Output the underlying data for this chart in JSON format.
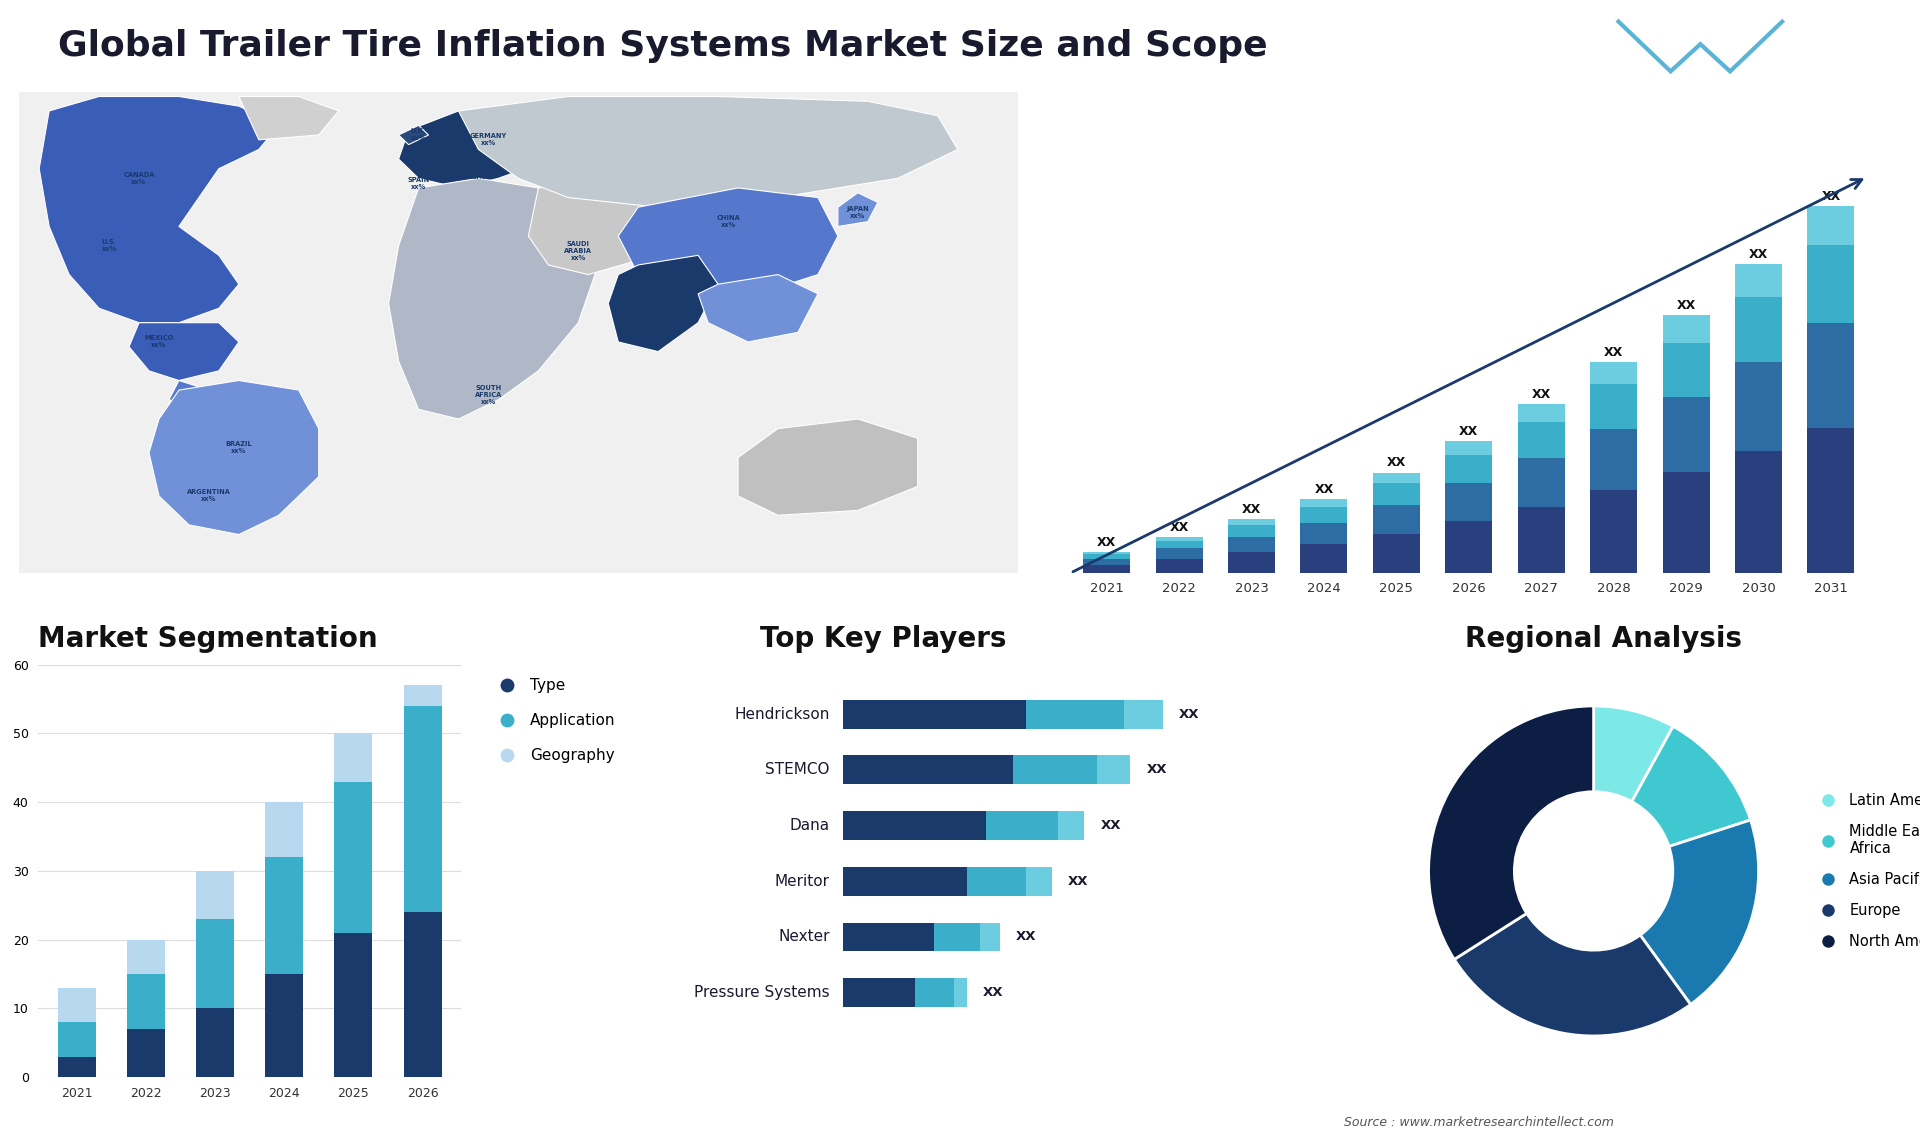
{
  "title": "Global Trailer Tire Inflation Systems Market Size and Scope",
  "title_fontsize": 26,
  "background_color": "#ffffff",
  "bar_chart_years": [
    2021,
    2022,
    2023,
    2024,
    2025,
    2026,
    2027,
    2028,
    2029,
    2030,
    2031
  ],
  "bar_seg1_color": "#2a3f7e",
  "bar_seg2_color": "#2e6da4",
  "bar_seg3_color": "#3baeca",
  "bar_seg4_color": "#6dcde0",
  "bar_heights_seg1": [
    2.0,
    3.5,
    5.0,
    7.0,
    9.5,
    12.5,
    16.0,
    20.0,
    24.5,
    29.5,
    35.0
  ],
  "bar_heights_seg2": [
    1.5,
    2.5,
    3.8,
    5.2,
    7.0,
    9.2,
    11.8,
    14.8,
    18.0,
    21.5,
    25.5
  ],
  "bar_heights_seg3": [
    1.0,
    1.8,
    2.8,
    3.8,
    5.2,
    6.8,
    8.7,
    10.8,
    13.2,
    15.8,
    18.8
  ],
  "bar_heights_seg4": [
    0.5,
    0.9,
    1.4,
    1.9,
    2.6,
    3.4,
    4.3,
    5.4,
    6.6,
    7.9,
    9.4
  ],
  "seg_chart_years": [
    2021,
    2022,
    2023,
    2024,
    2025,
    2026
  ],
  "seg_type_vals": [
    3,
    7,
    10,
    15,
    21,
    24
  ],
  "seg_app_vals": [
    5,
    8,
    13,
    17,
    22,
    30
  ],
  "seg_geo_vals": [
    5,
    5,
    7,
    8,
    7,
    3
  ],
  "seg_type_color": "#1a3a6b",
  "seg_app_color": "#3baeca",
  "seg_geo_color": "#b8d8f0",
  "seg_ylim": [
    0,
    60
  ],
  "seg_yticks": [
    0,
    10,
    20,
    30,
    40,
    50,
    60
  ],
  "players": [
    "Hendrickson",
    "STEMCO",
    "Dana",
    "Meritor",
    "Nexter",
    "Pressure Systems"
  ],
  "players_bar1": [
    0.28,
    0.26,
    0.22,
    0.19,
    0.14,
    0.11
  ],
  "players_bar2": [
    0.15,
    0.13,
    0.11,
    0.09,
    0.07,
    0.06
  ],
  "players_bar3": [
    0.06,
    0.05,
    0.04,
    0.04,
    0.03,
    0.02
  ],
  "players_color1": "#1a3a6b",
  "players_color2": "#3baeca",
  "players_color3": "#6dcde0",
  "pie_colors": [
    "#7de8e8",
    "#40c8d0",
    "#1a7ab0",
    "#1a3a6b",
    "#0d1e45"
  ],
  "pie_labels": [
    "Latin America",
    "Middle East &\nAfrica",
    "Asia Pacific",
    "Europe",
    "North America"
  ],
  "pie_sizes": [
    8,
    12,
    20,
    26,
    34
  ],
  "source_text": "Source : www.marketresearchintellect.com"
}
